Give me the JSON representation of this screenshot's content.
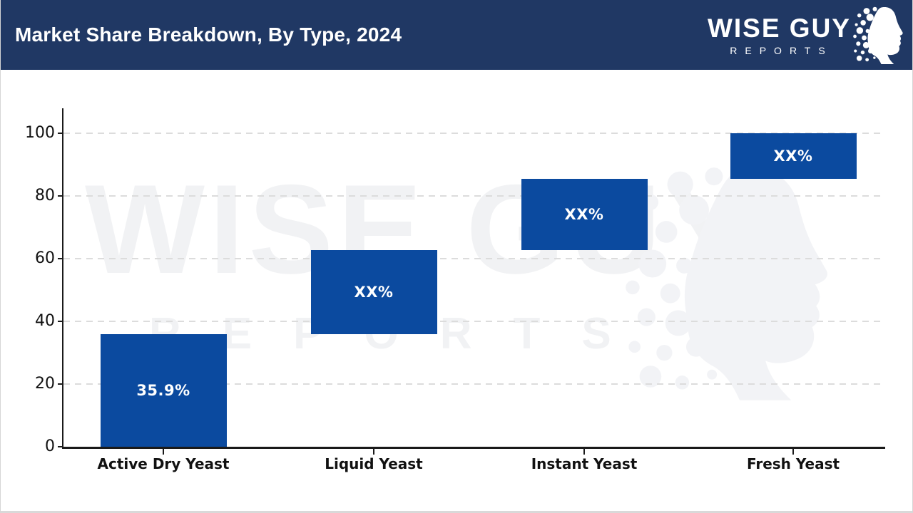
{
  "header": {
    "title": "Market Share Breakdown, By Type, 2024",
    "bg_color": "#203864",
    "logo": {
      "line1": "WISE GUY",
      "line2": "REPORTS"
    }
  },
  "watermark": {
    "line1": "WISE GUY",
    "line2": "REPORTS"
  },
  "chart_data": {
    "type": "bar",
    "subtype": "waterfall",
    "title": "Market Share Breakdown, By Type, 2024",
    "xlabel": "",
    "ylabel": "",
    "categories": [
      "Active Dry Yeast",
      "Liquid Yeast",
      "Instant Yeast",
      "Fresh Yeast"
    ],
    "segments": [
      {
        "category": "Active Dry Yeast",
        "start": 0,
        "end": 35.9,
        "value": 35.9,
        "label": "35.9%"
      },
      {
        "category": "Liquid Yeast",
        "start": 35.9,
        "end": 62.8,
        "value": 26.9,
        "label": "XX%"
      },
      {
        "category": "Instant Yeast",
        "start": 62.8,
        "end": 85.5,
        "value": 22.7,
        "label": "XX%"
      },
      {
        "category": "Fresh Yeast",
        "start": 85.5,
        "end": 100,
        "value": 14.5,
        "label": "XX%"
      }
    ],
    "yticks": [
      0,
      20,
      40,
      60,
      80,
      100
    ],
    "ylim": [
      0,
      108
    ],
    "bar_color": "#0B4A9F",
    "grid": "horizontal-dashed",
    "legend": "none"
  }
}
